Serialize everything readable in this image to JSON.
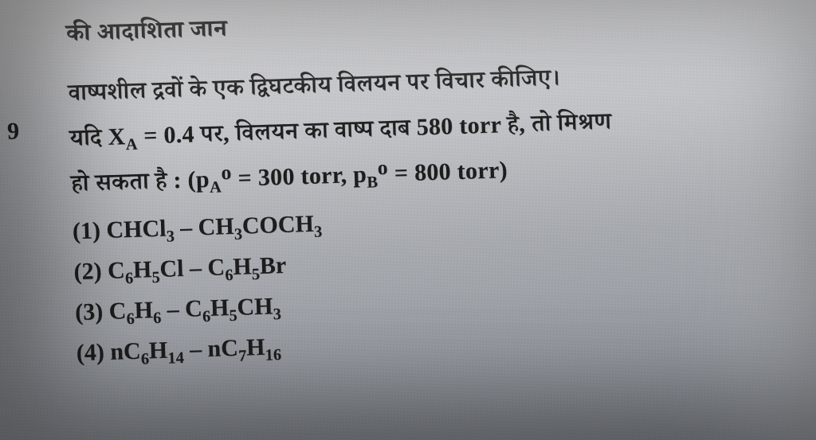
{
  "fragments": {
    "top_partial": "की आदाशिता जान"
  },
  "question": {
    "number": "9",
    "line1": "वाष्पशील द्रवों के एक द्विघटकीय विलयन पर विचार कीजिए।",
    "line2_pre": "यदि X",
    "line2_sub_A": "A",
    "line2_mid": " = 0.4 पर, विलयन का वाष्प दाब 580 torr है, तो मिश्रण",
    "line3_pre": "हो सकता है : (p",
    "line3_sub_A": "A",
    "line3_mid1": " = 300 torr, p",
    "line3_sub_B": "B",
    "line3_mid2": " = 800 torr)"
  },
  "options": {
    "o1": {
      "num": "(1)",
      "text_html": "CHCl<sub>3</sub> – CH<sub>3</sub>COCH<sub>3</sub>"
    },
    "o2": {
      "num": "(2)",
      "text_html": "C<sub>6</sub>H<sub>5</sub>Cl – C<sub>6</sub>H<sub>5</sub>Br"
    },
    "o3": {
      "num": "(3)",
      "text_html": "C<sub>6</sub>H<sub>6</sub> – C<sub>6</sub>H<sub>5</sub>CH<sub>3</sub>"
    },
    "o4": {
      "num": "(4)",
      "text_html": "nC<sub>6</sub>H<sub>14</sub> – nC<sub>7</sub>H<sub>16</sub>"
    }
  }
}
